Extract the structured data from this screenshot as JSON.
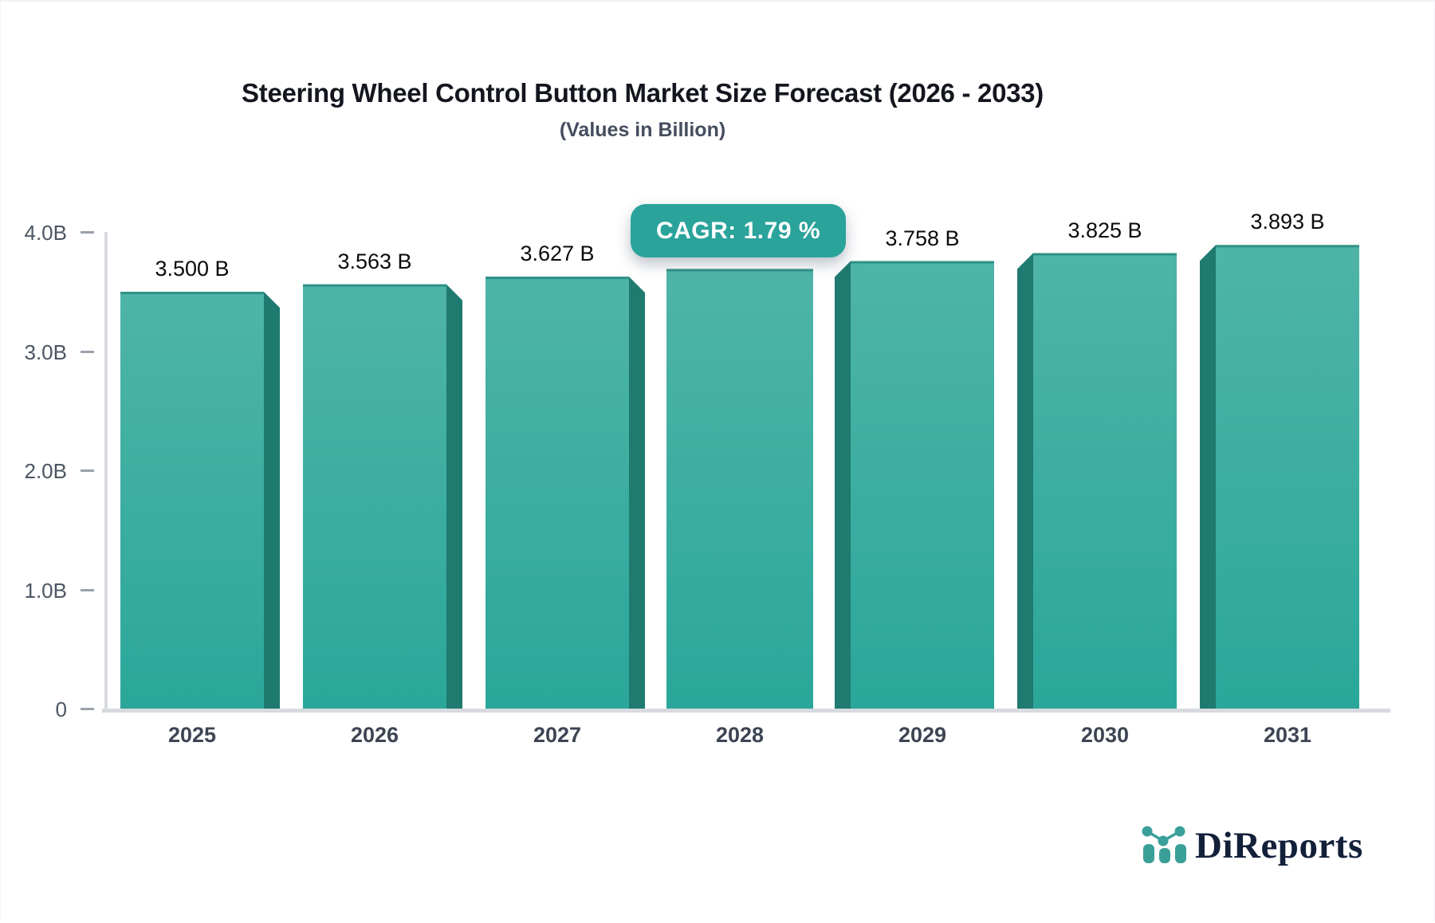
{
  "chart_data": {
    "type": "bar",
    "title": "Steering Wheel Control Button Market Size Forecast (2026 - 2033)",
    "subtitle": "(Values in Billion)",
    "categories": [
      "2025",
      "2026",
      "2027",
      "2028",
      "2029",
      "2030",
      "2031"
    ],
    "values": [
      3.5,
      3.563,
      3.627,
      3.692,
      3.758,
      3.825,
      3.893
    ],
    "bar_labels": [
      "3.500 B",
      "3.563 B",
      "3.627 B",
      "",
      "3.758 B",
      "3.825 B",
      "3.893 B"
    ],
    "y_ticks": [
      {
        "label": "4.0B",
        "value": 4.0
      },
      {
        "label": "3.0B",
        "value": 3.0
      },
      {
        "label": "2.0B",
        "value": 2.0
      },
      {
        "label": "1.0B",
        "value": 1.0
      },
      {
        "label": "0",
        "value": 0.0
      }
    ],
    "ylim": [
      0,
      4.0
    ],
    "xlabel": "",
    "ylabel": "",
    "grid": false,
    "legend": null,
    "annotation": {
      "cagr_label": "CAGR: 1.79 %"
    },
    "colors": {
      "bar_top": "#4fb4a8",
      "bar_bottom": "#2aa79a",
      "bar_side": "#1f7a70",
      "bar_top_edge": "#2f9187",
      "badge_bg": "#2aa39b",
      "badge_text": "#ffffff",
      "axis_line": "#d7dade",
      "tick_dash": "#9aa1ab",
      "tick_text": "#4b5563",
      "title_text": "#14161f",
      "subtitle_text": "#454d5e",
      "value_text": "#0b0b0c",
      "logo_text": "#13203a",
      "logo_icon": "#3a9f99"
    }
  },
  "footer": {
    "logo_text": "DiReports"
  }
}
